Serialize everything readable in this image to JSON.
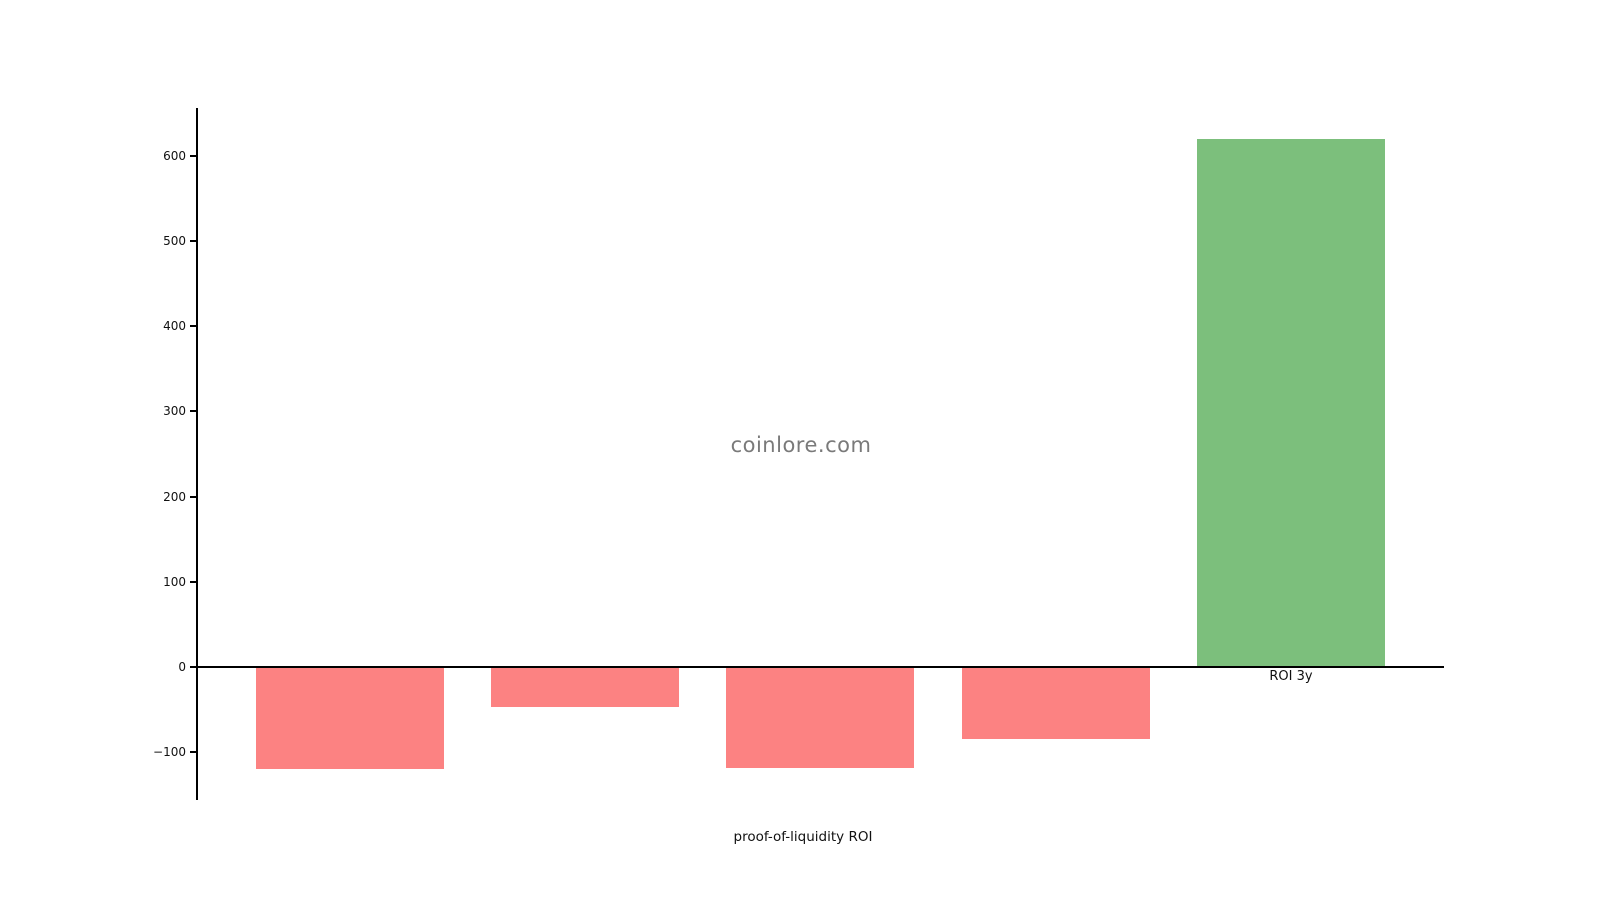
{
  "watermark": "coinlore.com",
  "colors": {
    "positive_bar": "#7cbf7c",
    "negative_bar": "#fc8282",
    "axis": "#000000",
    "tick_text": "#111111",
    "watermark_text": "#7a7a7a"
  },
  "chart_data": {
    "type": "bar",
    "title": "",
    "xlabel": "proof-of-liquidity ROI",
    "ylabel": "",
    "categories": [
      "",
      "",
      "",
      "",
      "ROI 3y"
    ],
    "values": [
      -120,
      -47,
      -118,
      -84,
      620
    ],
    "bar_colors": [
      "#fc8282",
      "#fc8282",
      "#fc8282",
      "#fc8282",
      "#7cbf7c"
    ],
    "ylim": [
      -156,
      656
    ],
    "yticks": [
      600,
      500,
      400,
      300,
      200,
      100,
      0,
      -100
    ],
    "ytick_labels": [
      "600",
      "500",
      "400",
      "300",
      "200",
      "100",
      "0",
      "−100"
    ],
    "grid": false,
    "legend": null,
    "watermark": "coinlore.com"
  }
}
